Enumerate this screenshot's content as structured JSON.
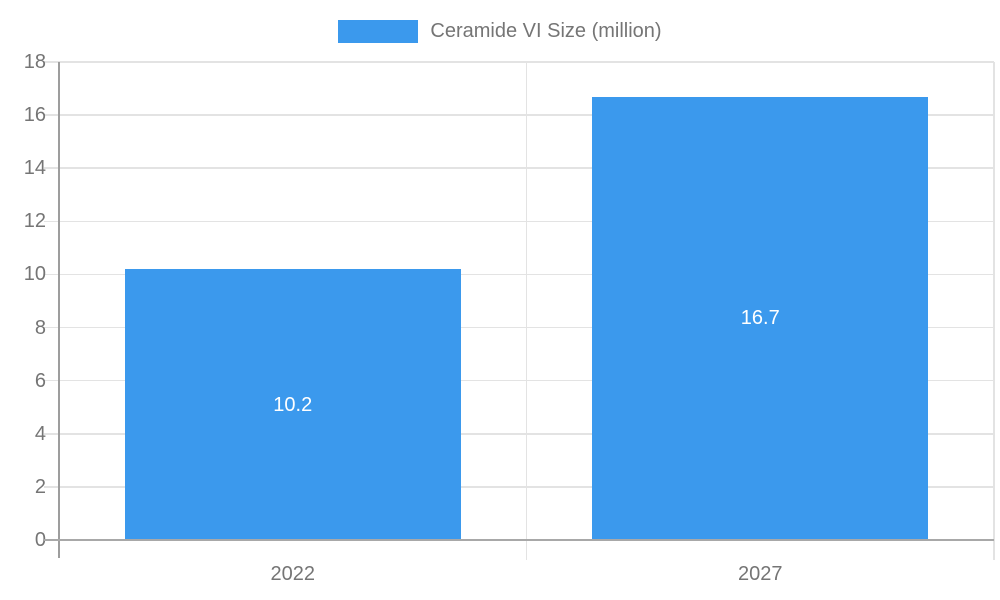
{
  "legend": {
    "label": "Ceramide VI Size (million)"
  },
  "chart_data": {
    "type": "bar",
    "title": "",
    "categories": [
      "2022",
      "2027"
    ],
    "series": [
      {
        "name": "Ceramide VI Size (million)",
        "values": [
          10.2,
          16.7
        ]
      }
    ],
    "value_labels": [
      "10.2",
      "16.7"
    ],
    "ylim": [
      0,
      18
    ],
    "ytick_step": 2,
    "yticks": [
      0,
      2,
      4,
      6,
      8,
      10,
      12,
      14,
      16,
      18
    ],
    "grid": true,
    "legend_position": "top-center",
    "bar_color": "#3B99ED",
    "value_label_color": "#FFFFFF",
    "axis_text_color": "#757575"
  },
  "colors": {
    "background": "#FFFFFF",
    "bar": "#3B99ED",
    "gridline": "#E3E3E3",
    "axis_line": "#9D9D9D",
    "baseline": "#A8A8A8",
    "text": "#757575"
  }
}
